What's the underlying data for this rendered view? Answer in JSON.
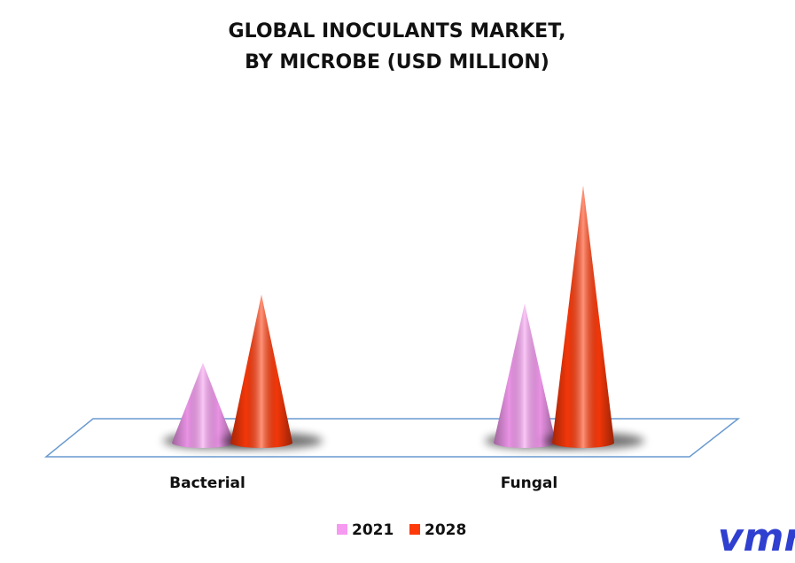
{
  "chart_data": {
    "type": "cone",
    "title": [
      "GLOBAL INOCULANTS MARKET,",
      "BY MICROBE (USD MILLION)"
    ],
    "categories": [
      "Bacterial",
      "Fungal"
    ],
    "series": [
      {
        "name": "2021",
        "color": "#f59af0",
        "values": [
          90,
          157
        ]
      },
      {
        "name": "2028",
        "color": "#ff3a0a",
        "values": [
          167,
          290
        ]
      }
    ],
    "legend": "bottom"
  },
  "logo": "vmr"
}
